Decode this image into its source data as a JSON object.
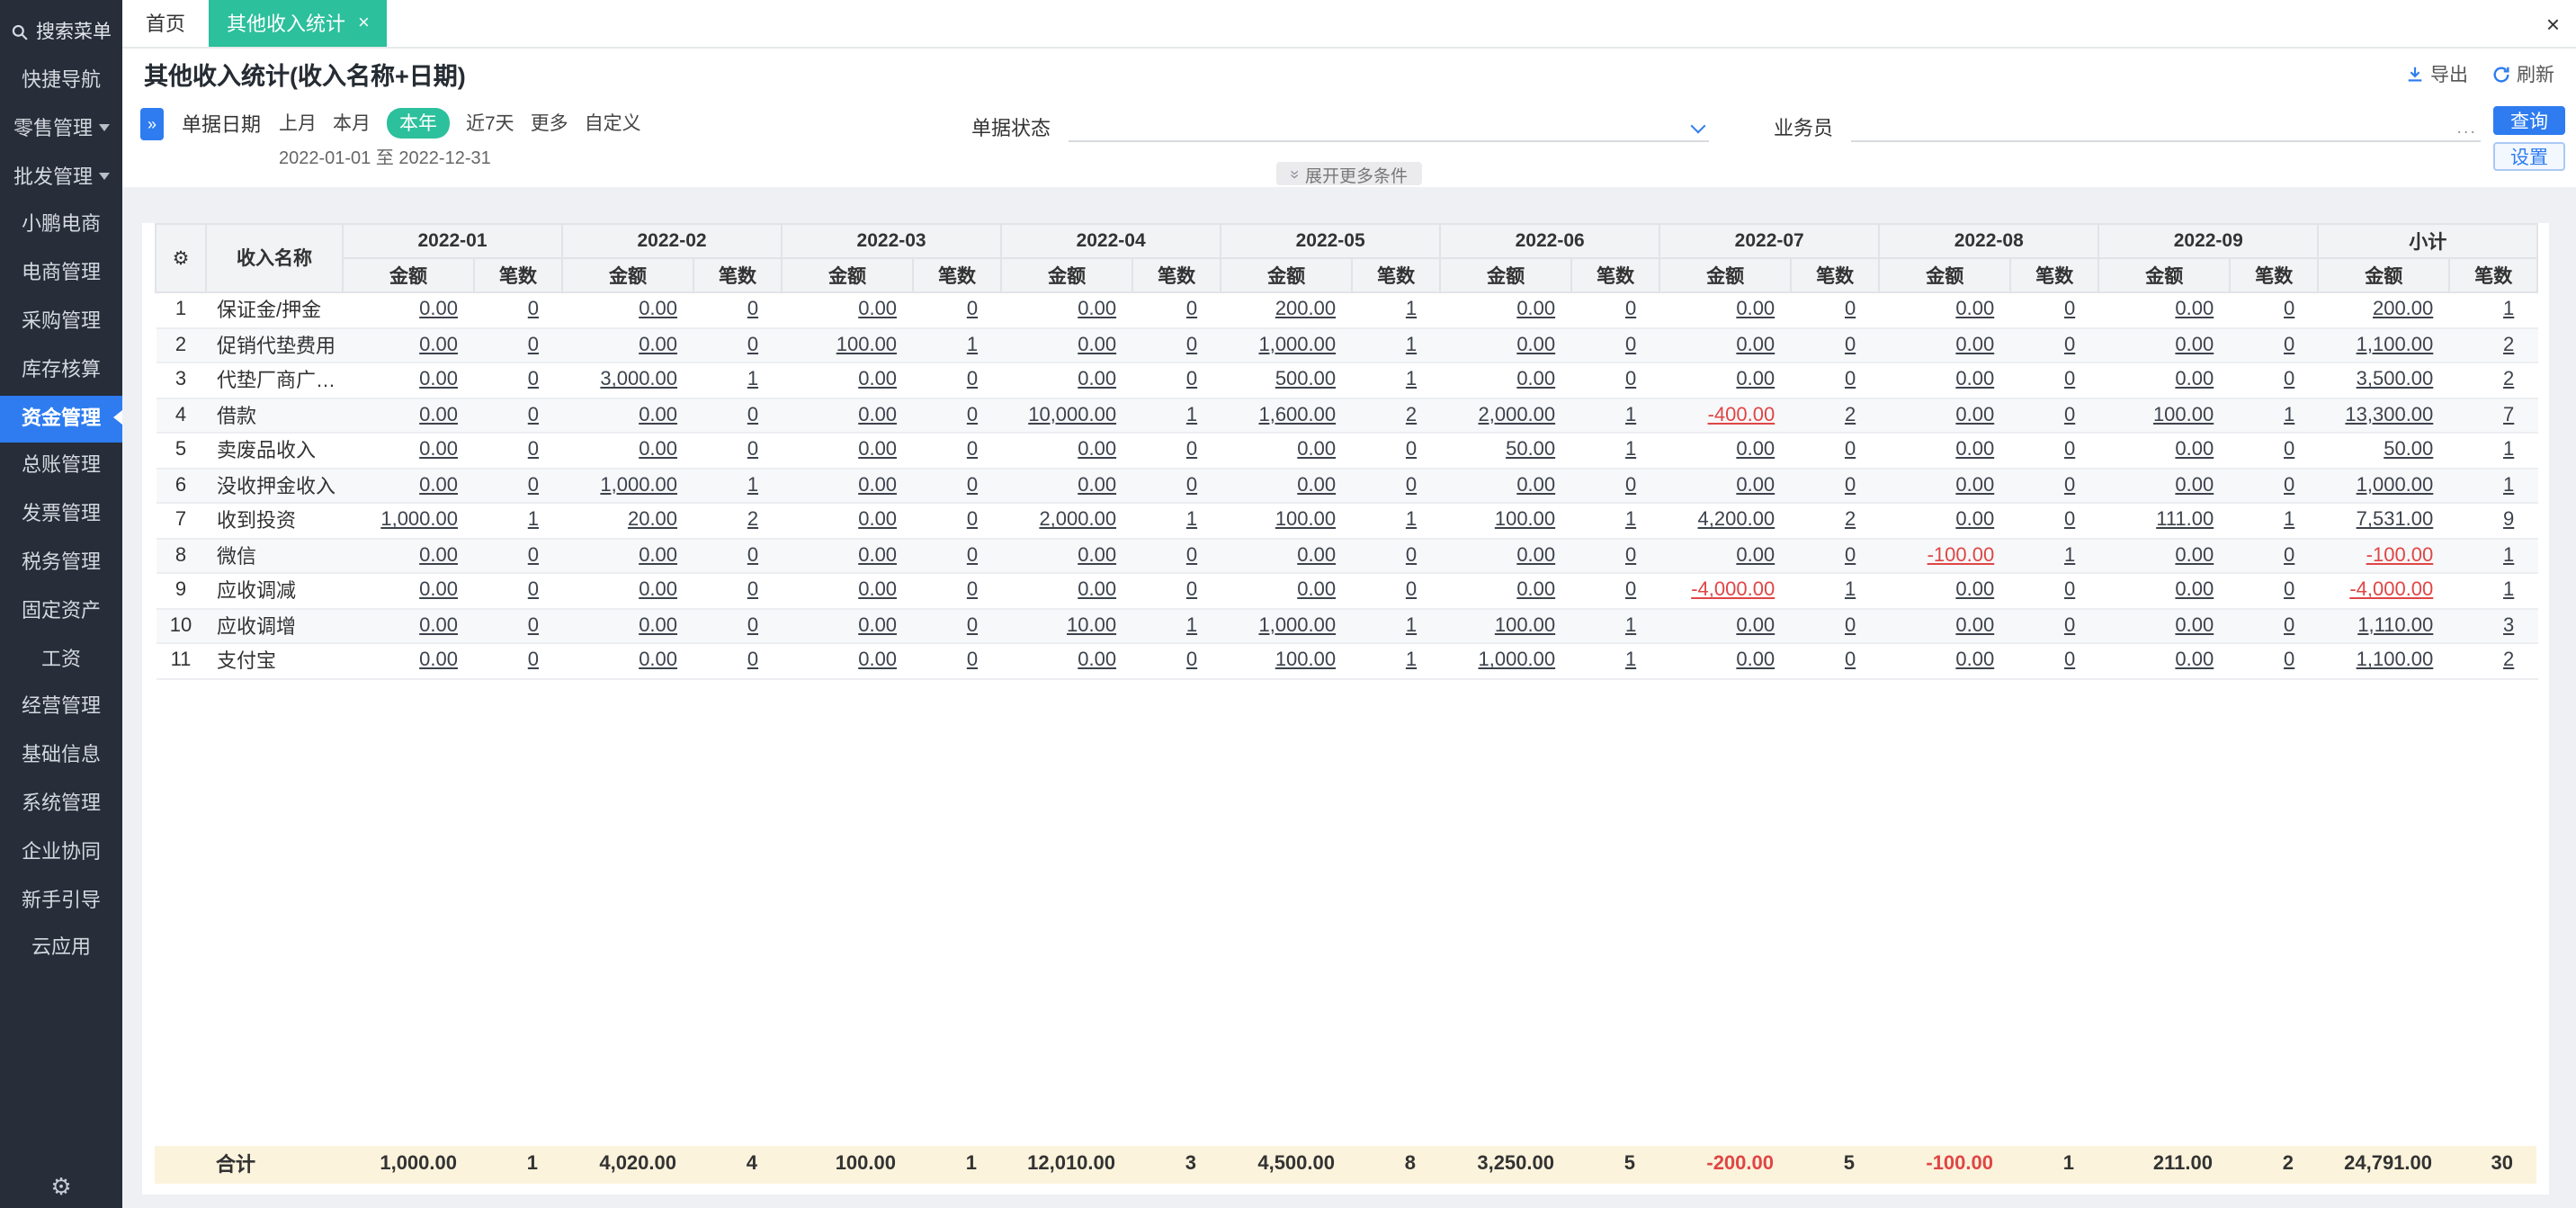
{
  "window": {
    "close_label": "×"
  },
  "colors": {
    "accent_blue": "#2e7cf0",
    "accent_green": "#2cc09c",
    "negative_red": "#e04545",
    "total_row_bg": "#fbf3dc",
    "sidebar_bg": "#272d39"
  },
  "sidebar": {
    "search_label": "搜索菜单",
    "items": [
      {
        "key": "quick-nav",
        "label": "快捷导航"
      },
      {
        "key": "retail",
        "label": "零售管理",
        "caret": true
      },
      {
        "key": "wholesale",
        "label": "批发管理",
        "caret": true
      },
      {
        "key": "mini-ecommerce",
        "label": "小鹏电商"
      },
      {
        "key": "ecommerce",
        "label": "电商管理"
      },
      {
        "key": "purchase",
        "label": "采购管理"
      },
      {
        "key": "inventory-accounting",
        "label": "库存核算"
      },
      {
        "key": "funds",
        "label": "资金管理",
        "active": true
      },
      {
        "key": "general-ledger",
        "label": "总账管理"
      },
      {
        "key": "invoice",
        "label": "发票管理"
      },
      {
        "key": "tax",
        "label": "税务管理"
      },
      {
        "key": "fixed-assets",
        "label": "固定资产"
      },
      {
        "key": "payroll",
        "label": "工资"
      },
      {
        "key": "operations",
        "label": "经营管理"
      },
      {
        "key": "base-info",
        "label": "基础信息"
      },
      {
        "key": "system",
        "label": "系统管理"
      },
      {
        "key": "enterprise-collab",
        "label": "企业协同"
      },
      {
        "key": "newbie-guide",
        "label": "新手引导"
      },
      {
        "key": "cloud-apps",
        "label": "云应用"
      }
    ]
  },
  "tabs": {
    "home": "首页",
    "current": "其他收入统计",
    "close": "×"
  },
  "page": {
    "title": "其他收入统计(收入名称+日期)",
    "export_label": "导出",
    "refresh_label": "刷新"
  },
  "filters": {
    "date_label": "单据日期",
    "quick_options": [
      {
        "key": "prev-month",
        "label": "上月"
      },
      {
        "key": "this-month",
        "label": "本月"
      },
      {
        "key": "this-year",
        "label": "本年",
        "selected": true
      },
      {
        "key": "last-7-days",
        "label": "近7天"
      },
      {
        "key": "more",
        "label": "更多"
      },
      {
        "key": "custom",
        "label": "自定义"
      }
    ],
    "date_range": "2022-01-01 至 2022-12-31",
    "status_label": "单据状态",
    "salesman_label": "业务员",
    "salesman_more": "...",
    "expand_label": "展开更多条件",
    "query_label": "查询",
    "settings_label": "设置"
  },
  "table": {
    "name_header": "收入名称",
    "amount_header": "金额",
    "count_header": "笔数",
    "months": [
      "2022-01",
      "2022-02",
      "2022-03",
      "2022-04",
      "2022-05",
      "2022-06",
      "2022-07",
      "2022-08",
      "2022-09",
      "小计"
    ],
    "rows": [
      {
        "index": 1,
        "name": "保证金/押金",
        "cells": [
          [
            "0.00",
            "0"
          ],
          [
            "0.00",
            "0"
          ],
          [
            "0.00",
            "0"
          ],
          [
            "0.00",
            "0"
          ],
          [
            "200.00",
            "1"
          ],
          [
            "0.00",
            "0"
          ],
          [
            "0.00",
            "0"
          ],
          [
            "0.00",
            "0"
          ],
          [
            "0.00",
            "0"
          ],
          [
            "200.00",
            "1"
          ]
        ]
      },
      {
        "index": 2,
        "name": "促销代垫费用",
        "cells": [
          [
            "0.00",
            "0"
          ],
          [
            "0.00",
            "0"
          ],
          [
            "100.00",
            "1"
          ],
          [
            "0.00",
            "0"
          ],
          [
            "1,000.00",
            "1"
          ],
          [
            "0.00",
            "0"
          ],
          [
            "0.00",
            "0"
          ],
          [
            "0.00",
            "0"
          ],
          [
            "0.00",
            "0"
          ],
          [
            "1,100.00",
            "2"
          ]
        ]
      },
      {
        "index": 3,
        "name": "代垫厂商广…",
        "cells": [
          [
            "0.00",
            "0"
          ],
          [
            "3,000.00",
            "1"
          ],
          [
            "0.00",
            "0"
          ],
          [
            "0.00",
            "0"
          ],
          [
            "500.00",
            "1"
          ],
          [
            "0.00",
            "0"
          ],
          [
            "0.00",
            "0"
          ],
          [
            "0.00",
            "0"
          ],
          [
            "0.00",
            "0"
          ],
          [
            "3,500.00",
            "2"
          ]
        ]
      },
      {
        "index": 4,
        "name": "借款",
        "cells": [
          [
            "0.00",
            "0"
          ],
          [
            "0.00",
            "0"
          ],
          [
            "0.00",
            "0"
          ],
          [
            "10,000.00",
            "1"
          ],
          [
            "1,600.00",
            "2"
          ],
          [
            "2,000.00",
            "1"
          ],
          [
            "-400.00",
            "2"
          ],
          [
            "0.00",
            "0"
          ],
          [
            "100.00",
            "1"
          ],
          [
            "13,300.00",
            "7"
          ]
        ]
      },
      {
        "index": 5,
        "name": "卖废品收入",
        "cells": [
          [
            "0.00",
            "0"
          ],
          [
            "0.00",
            "0"
          ],
          [
            "0.00",
            "0"
          ],
          [
            "0.00",
            "0"
          ],
          [
            "0.00",
            "0"
          ],
          [
            "50.00",
            "1"
          ],
          [
            "0.00",
            "0"
          ],
          [
            "0.00",
            "0"
          ],
          [
            "0.00",
            "0"
          ],
          [
            "50.00",
            "1"
          ]
        ]
      },
      {
        "index": 6,
        "name": "没收押金收入",
        "cells": [
          [
            "0.00",
            "0"
          ],
          [
            "1,000.00",
            "1"
          ],
          [
            "0.00",
            "0"
          ],
          [
            "0.00",
            "0"
          ],
          [
            "0.00",
            "0"
          ],
          [
            "0.00",
            "0"
          ],
          [
            "0.00",
            "0"
          ],
          [
            "0.00",
            "0"
          ],
          [
            "0.00",
            "0"
          ],
          [
            "1,000.00",
            "1"
          ]
        ]
      },
      {
        "index": 7,
        "name": "收到投资",
        "cells": [
          [
            "1,000.00",
            "1"
          ],
          [
            "20.00",
            "2"
          ],
          [
            "0.00",
            "0"
          ],
          [
            "2,000.00",
            "1"
          ],
          [
            "100.00",
            "1"
          ],
          [
            "100.00",
            "1"
          ],
          [
            "4,200.00",
            "2"
          ],
          [
            "0.00",
            "0"
          ],
          [
            "111.00",
            "1"
          ],
          [
            "7,531.00",
            "9"
          ]
        ]
      },
      {
        "index": 8,
        "name": "微信",
        "cells": [
          [
            "0.00",
            "0"
          ],
          [
            "0.00",
            "0"
          ],
          [
            "0.00",
            "0"
          ],
          [
            "0.00",
            "0"
          ],
          [
            "0.00",
            "0"
          ],
          [
            "0.00",
            "0"
          ],
          [
            "0.00",
            "0"
          ],
          [
            "-100.00",
            "1"
          ],
          [
            "0.00",
            "0"
          ],
          [
            "-100.00",
            "1"
          ]
        ]
      },
      {
        "index": 9,
        "name": "应收调减",
        "cells": [
          [
            "0.00",
            "0"
          ],
          [
            "0.00",
            "0"
          ],
          [
            "0.00",
            "0"
          ],
          [
            "0.00",
            "0"
          ],
          [
            "0.00",
            "0"
          ],
          [
            "0.00",
            "0"
          ],
          [
            "-4,000.00",
            "1"
          ],
          [
            "0.00",
            "0"
          ],
          [
            "0.00",
            "0"
          ],
          [
            "-4,000.00",
            "1"
          ]
        ]
      },
      {
        "index": 10,
        "name": "应收调增",
        "cells": [
          [
            "0.00",
            "0"
          ],
          [
            "0.00",
            "0"
          ],
          [
            "0.00",
            "0"
          ],
          [
            "10.00",
            "1"
          ],
          [
            "1,000.00",
            "1"
          ],
          [
            "100.00",
            "1"
          ],
          [
            "0.00",
            "0"
          ],
          [
            "0.00",
            "0"
          ],
          [
            "0.00",
            "0"
          ],
          [
            "1,110.00",
            "3"
          ]
        ]
      },
      {
        "index": 11,
        "name": "支付宝",
        "cells": [
          [
            "0.00",
            "0"
          ],
          [
            "0.00",
            "0"
          ],
          [
            "0.00",
            "0"
          ],
          [
            "0.00",
            "0"
          ],
          [
            "100.00",
            "1"
          ],
          [
            "1,000.00",
            "1"
          ],
          [
            "0.00",
            "0"
          ],
          [
            "0.00",
            "0"
          ],
          [
            "0.00",
            "0"
          ],
          [
            "1,100.00",
            "2"
          ]
        ]
      }
    ],
    "total": {
      "label": "合计",
      "cells": [
        [
          "1,000.00",
          "1"
        ],
        [
          "4,020.00",
          "4"
        ],
        [
          "100.00",
          "1"
        ],
        [
          "12,010.00",
          "3"
        ],
        [
          "4,500.00",
          "8"
        ],
        [
          "3,250.00",
          "5"
        ],
        [
          "-200.00",
          "5"
        ],
        [
          "-100.00",
          "1"
        ],
        [
          "211.00",
          "2"
        ],
        [
          "24,791.00",
          "30"
        ]
      ]
    }
  }
}
